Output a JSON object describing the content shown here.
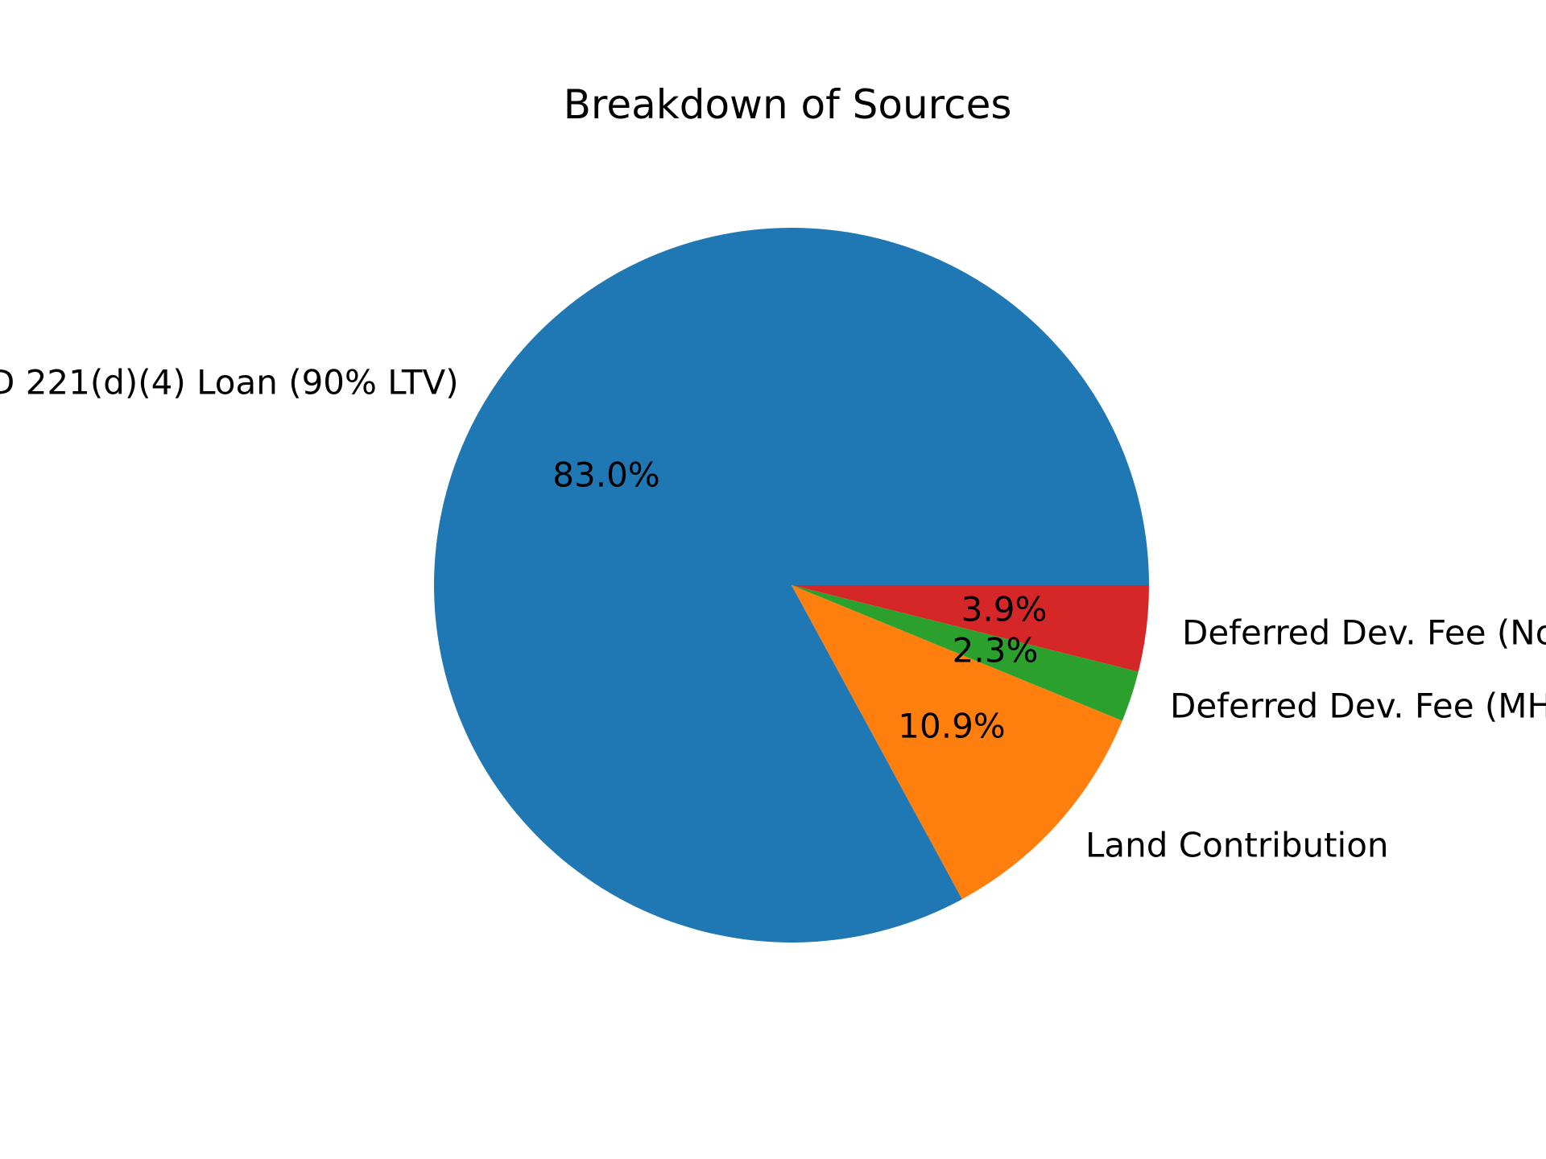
{
  "chart_data": {
    "type": "pie",
    "title": "Breakdown of Sources",
    "start_angle_deg": 0,
    "direction": "counterclockwise",
    "legend": false,
    "autopct_format": "xx.x%",
    "slices": [
      {
        "label": "D 221(d)(4) Loan (90% LTV)",
        "value_pct": 83.0,
        "pct_label": "83.0%",
        "color": "#1f77b4"
      },
      {
        "label": "Land Contribution",
        "value_pct": 10.9,
        "pct_label": "10.9%",
        "color": "#ff7f0e"
      },
      {
        "label": "Deferred Dev. Fee (MH",
        "value_pct": 2.3,
        "pct_label": "2.3%",
        "color": "#2ca02c"
      },
      {
        "label": "Deferred Dev. Fee (No",
        "value_pct": 3.9,
        "pct_label": "3.9%",
        "color": "#d62728"
      }
    ]
  }
}
